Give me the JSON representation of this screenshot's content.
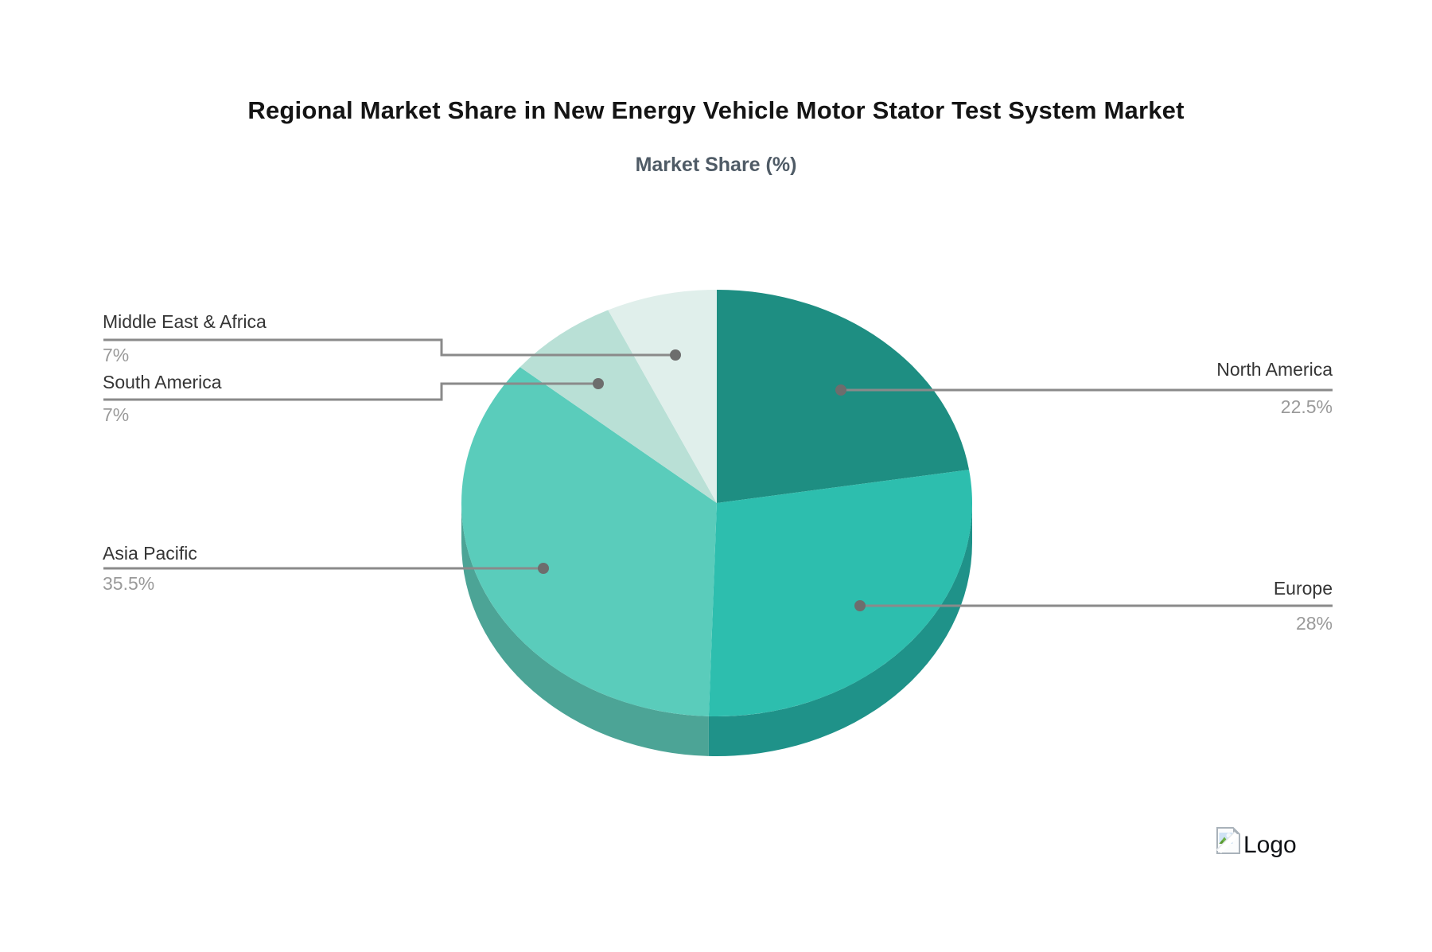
{
  "header": {
    "title": "Regional Market Share in New Energy Vehicle Motor Stator Test System Market",
    "subtitle": "Market Share (%)"
  },
  "chart_data": {
    "type": "pie",
    "style": "3d-pie",
    "title": "Regional Market Share in New Energy Vehicle Motor Stator Test System Market",
    "subtitle": "Market Share (%)",
    "unit": "%",
    "start_angle_deg": -90,
    "direction": "clockwise",
    "labels_position": "outside-callout",
    "slices": [
      {
        "label": "North America",
        "value": 22.5,
        "value_label": "22.5%",
        "color": "#1e8e82",
        "side_color": "#177c72"
      },
      {
        "label": "Europe",
        "value": 28,
        "value_label": "28%",
        "color": "#2dbeae",
        "side_color": "#1f9289"
      },
      {
        "label": "Asia Pacific",
        "value": 35.5,
        "value_label": "35.5%",
        "color": "#5accbb",
        "side_color": "#4ca496"
      },
      {
        "label": "South America",
        "value": 7,
        "value_label": "7%",
        "color": "#b9e0d6",
        "side_color": "#93b8ae"
      },
      {
        "label": "Middle East & Africa",
        "value": 7,
        "value_label": "7%",
        "color": "#e0efeb",
        "side_color": "#b8c6c2"
      }
    ]
  },
  "colors": {
    "background": "#ffffff",
    "callout_line": "#8a8a8a",
    "callout_dot": "#6d6d6d",
    "label_text": "#353535",
    "value_text": "#9a9a9a",
    "title_text": "#141414",
    "subtitle_text": "#4f5b66"
  },
  "watermark": {
    "logo_alt": "Logo"
  }
}
